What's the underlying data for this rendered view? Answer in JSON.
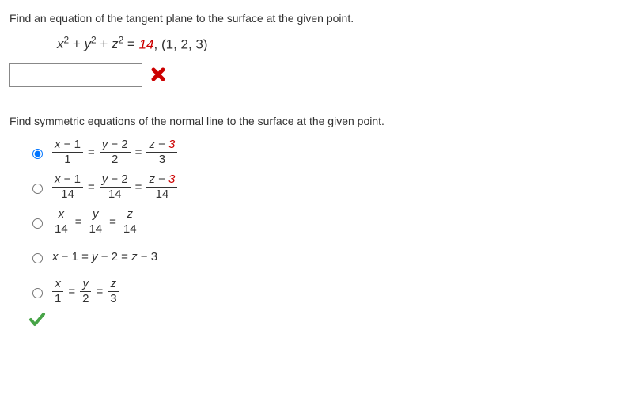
{
  "question1": {
    "text": "Find an equation of the tangent plane to the surface at the given point.",
    "equation": {
      "lhs_html": "x<span class='sup'>2</span> <span class='upright'>+</span> y<span class='sup'>2</span> <span class='upright'>+</span> z<span class='sup'>2</span> <span class='upright'>=</span> ",
      "rhs_val": "14",
      "rhs_rest": ", (1, 2, 3)"
    },
    "input_value": "",
    "result": "incorrect"
  },
  "question2": {
    "text": "Find symmetric equations of the normal line to the surface at the given point.",
    "options": [
      {
        "selected": true,
        "type": "frac3",
        "n1": "x − 1",
        "d1": "1",
        "n2": "y − 2",
        "d2": "2",
        "n3": "z − 3",
        "d3": "3",
        "highlight_num3": true
      },
      {
        "selected": false,
        "type": "frac3",
        "n1": "x − 1",
        "d1": "14",
        "n2": "y − 2",
        "d2": "14",
        "n3": "z − 3",
        "d3": "14",
        "highlight_num3": true
      },
      {
        "selected": false,
        "type": "frac3",
        "n1": "x",
        "d1": "14",
        "n2": "y",
        "d2": "14",
        "n3": "z",
        "d3": "14",
        "highlight_num3": false
      },
      {
        "selected": false,
        "type": "single",
        "text_html": "x <span class='upright'>− 1 =</span> y <span class='upright'>− 2 =</span> z <span class='upright'>− 3</span>"
      },
      {
        "selected": false,
        "type": "frac3",
        "n1": "x",
        "d1": "1",
        "n2": "y",
        "d2": "2",
        "n3": "z",
        "d3": "3",
        "highlight_num3": false
      }
    ],
    "result": "correct"
  },
  "colors": {
    "red": "#cc0000",
    "green": "#47a447",
    "text": "#333333"
  }
}
